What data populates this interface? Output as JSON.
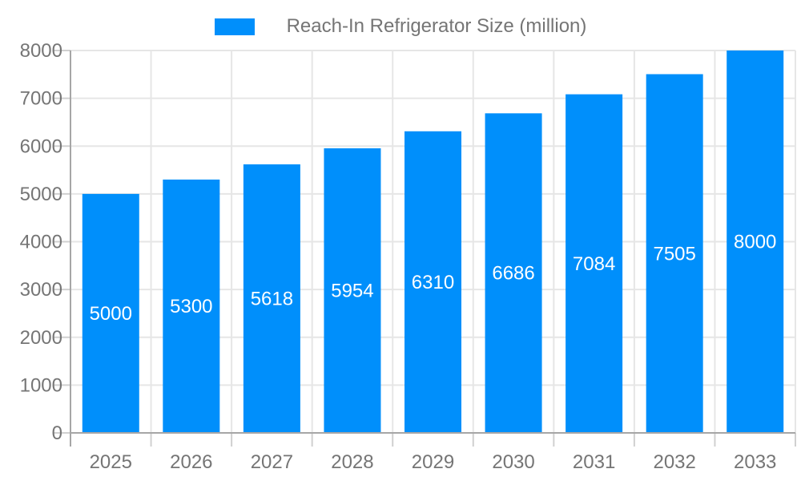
{
  "legend": {
    "label": "Reach-In Refrigerator Size (million)"
  },
  "chart_data": {
    "type": "bar",
    "title": "Reach-In Refrigerator Size (million)",
    "series_name": "Reach-In Refrigerator Size (million)",
    "categories": [
      "2025",
      "2026",
      "2027",
      "2028",
      "2029",
      "2030",
      "2031",
      "2032",
      "2033"
    ],
    "values": [
      5000,
      5300,
      5618,
      5954,
      6310,
      6686,
      7084,
      7505,
      8000
    ],
    "data_labels_visible": true,
    "xlabel": "",
    "ylabel": "",
    "ylim": [
      0,
      8000
    ],
    "yticks": [
      0,
      1000,
      2000,
      3000,
      4000,
      5000,
      6000,
      7000,
      8000
    ],
    "grid": "both",
    "legend_position": "top",
    "colors": {
      "bar": "#008FFB",
      "bar_label_text": "#ffffff",
      "axis_label_text": "#757575",
      "legend_text": "#757575",
      "gridline": "#e6e6e6",
      "tick": "#d0d0d0",
      "axis_line": "#a6a6a6",
      "background": "#ffffff"
    }
  }
}
